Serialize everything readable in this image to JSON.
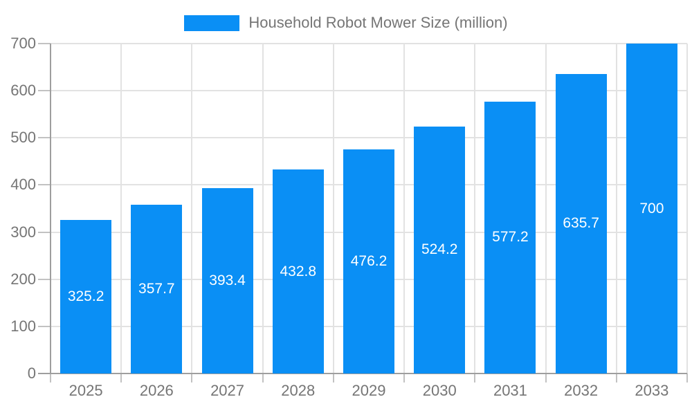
{
  "chart_data": {
    "type": "bar",
    "title": "Household Robot Mower Size (million)",
    "legend": {
      "position": "top-center",
      "label": "Household Robot Mower Size (million)"
    },
    "categories": [
      "2025",
      "2026",
      "2027",
      "2028",
      "2029",
      "2030",
      "2031",
      "2032",
      "2033"
    ],
    "series": [
      {
        "name": "Household Robot Mower Size (million)",
        "values": [
          325.2,
          357.7,
          393.4,
          432.8,
          476.2,
          524.2,
          577.2,
          635.7,
          700
        ],
        "value_labels": [
          "325.2",
          "357.7",
          "393.4",
          "432.8",
          "476.2",
          "524.2",
          "577.2",
          "635.7",
          "700"
        ]
      }
    ],
    "xlabel": "",
    "ylabel": "",
    "ylim": [
      0,
      700
    ],
    "yticks": [
      0,
      100,
      200,
      300,
      400,
      500,
      600,
      700
    ],
    "grid": true,
    "value_labels_position": "inside-center"
  },
  "colors": {
    "bar": "#0a8ff5",
    "bar_value_text": "#ffffff",
    "axis_text": "#757575",
    "legend_text": "#757575",
    "gridline": "#e2e2e2",
    "tick": "#c2c2c2",
    "axis_line": "#9e9e9e",
    "background": "#ffffff"
  }
}
